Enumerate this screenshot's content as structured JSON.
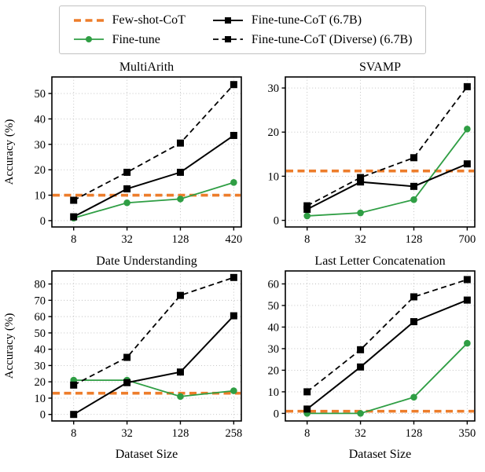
{
  "colors": {
    "few_shot": "#ed7d2b",
    "fine_tune": "#2f9e44",
    "cot": "#000000",
    "grid": "#bdbdbd",
    "axis": "#000000",
    "legend_border": "#c2c2c2"
  },
  "series_styles": {
    "few_shot": {
      "color": "#ed7d2b",
      "width": 3.6,
      "dash": "9 5.5",
      "marker": "none"
    },
    "fine_tune": {
      "color": "#2f9e44",
      "width": 1.8,
      "dash": "",
      "marker": "circle"
    },
    "cot": {
      "color": "#000000",
      "width": 2.0,
      "dash": "",
      "marker": "square"
    },
    "cot_diverse": {
      "color": "#000000",
      "width": 1.8,
      "dash": "7 4.5",
      "marker": "square"
    }
  },
  "legend": {
    "items": [
      {
        "label": "Few-shot-CoT",
        "style": "few_shot"
      },
      {
        "label": "Fine-tune-CoT (6.7B)",
        "style": "cot"
      },
      {
        "label": "Fine-tune",
        "style": "fine_tune"
      },
      {
        "label": "Fine-tune-CoT (Diverse) (6.7B)",
        "style": "cot_diverse"
      }
    ]
  },
  "axes": {
    "ylabel": "Accuracy (%)",
    "xlabel": "Dataset Size"
  },
  "chart_data": [
    {
      "type": "line",
      "title": "MultiArith",
      "categories": [
        "8",
        "32",
        "128",
        "420"
      ],
      "yticks": [
        0,
        10,
        20,
        30,
        40,
        50
      ],
      "ylim": [
        -2.5,
        56.5
      ],
      "series": [
        {
          "name": "Few-shot-CoT",
          "style": "few_shot",
          "type": "hline",
          "value": 10
        },
        {
          "name": "Fine-tune",
          "style": "fine_tune",
          "values": [
            1,
            7,
            8.5,
            15
          ]
        },
        {
          "name": "Fine-tune-CoT (6.7B)",
          "style": "cot",
          "values": [
            1.5,
            12.5,
            19,
            33.5
          ]
        },
        {
          "name": "Fine-tune-CoT (Diverse) (6.7B)",
          "style": "cot_diverse",
          "values": [
            8,
            19,
            30.5,
            53.5
          ]
        }
      ]
    },
    {
      "type": "line",
      "title": "SVAMP",
      "categories": [
        "8",
        "32",
        "128",
        "700"
      ],
      "yticks": [
        0,
        10,
        20,
        30
      ],
      "ylim": [
        -1.5,
        32.5
      ],
      "series": [
        {
          "name": "Few-shot-CoT",
          "style": "few_shot",
          "type": "hline",
          "value": 11.2
        },
        {
          "name": "Fine-tune",
          "style": "fine_tune",
          "values": [
            1,
            1.7,
            4.7,
            20.7
          ]
        },
        {
          "name": "Fine-tune-CoT (6.7B)",
          "style": "cot",
          "values": [
            2.5,
            8.7,
            7.7,
            12.8
          ]
        },
        {
          "name": "Fine-tune-CoT (Diverse) (6.7B)",
          "style": "cot_diverse",
          "values": [
            3.3,
            9.7,
            14.2,
            30.3
          ]
        }
      ]
    },
    {
      "type": "line",
      "title": "Date Understanding",
      "categories": [
        "8",
        "32",
        "128",
        "258"
      ],
      "yticks": [
        0,
        10,
        20,
        30,
        40,
        50,
        60,
        70,
        80
      ],
      "ylim": [
        -4,
        88
      ],
      "series": [
        {
          "name": "Few-shot-CoT",
          "style": "few_shot",
          "type": "hline",
          "value": 13
        },
        {
          "name": "Fine-tune",
          "style": "fine_tune",
          "values": [
            21,
            21,
            11,
            14.5
          ]
        },
        {
          "name": "Fine-tune-CoT (6.7B)",
          "style": "cot",
          "values": [
            0,
            19.5,
            26,
            60.5
          ]
        },
        {
          "name": "Fine-tune-CoT (Diverse) (6.7B)",
          "style": "cot_diverse",
          "values": [
            18,
            35,
            73,
            84
          ]
        }
      ]
    },
    {
      "type": "line",
      "title": "Last Letter Concatenation",
      "categories": [
        "8",
        "32",
        "128",
        "350"
      ],
      "yticks": [
        0,
        10,
        20,
        30,
        40,
        50,
        60
      ],
      "ylim": [
        -3.5,
        66
      ],
      "series": [
        {
          "name": "Few-shot-CoT",
          "style": "few_shot",
          "type": "hline",
          "value": 1
        },
        {
          "name": "Fine-tune",
          "style": "fine_tune",
          "values": [
            0,
            0,
            7.5,
            32.5
          ]
        },
        {
          "name": "Fine-tune-CoT (6.7B)",
          "style": "cot",
          "values": [
            2,
            21.5,
            42.5,
            52.5
          ]
        },
        {
          "name": "Fine-tune-CoT (Diverse) (6.7B)",
          "style": "cot_diverse",
          "values": [
            10,
            29.5,
            54,
            62
          ]
        }
      ]
    }
  ]
}
